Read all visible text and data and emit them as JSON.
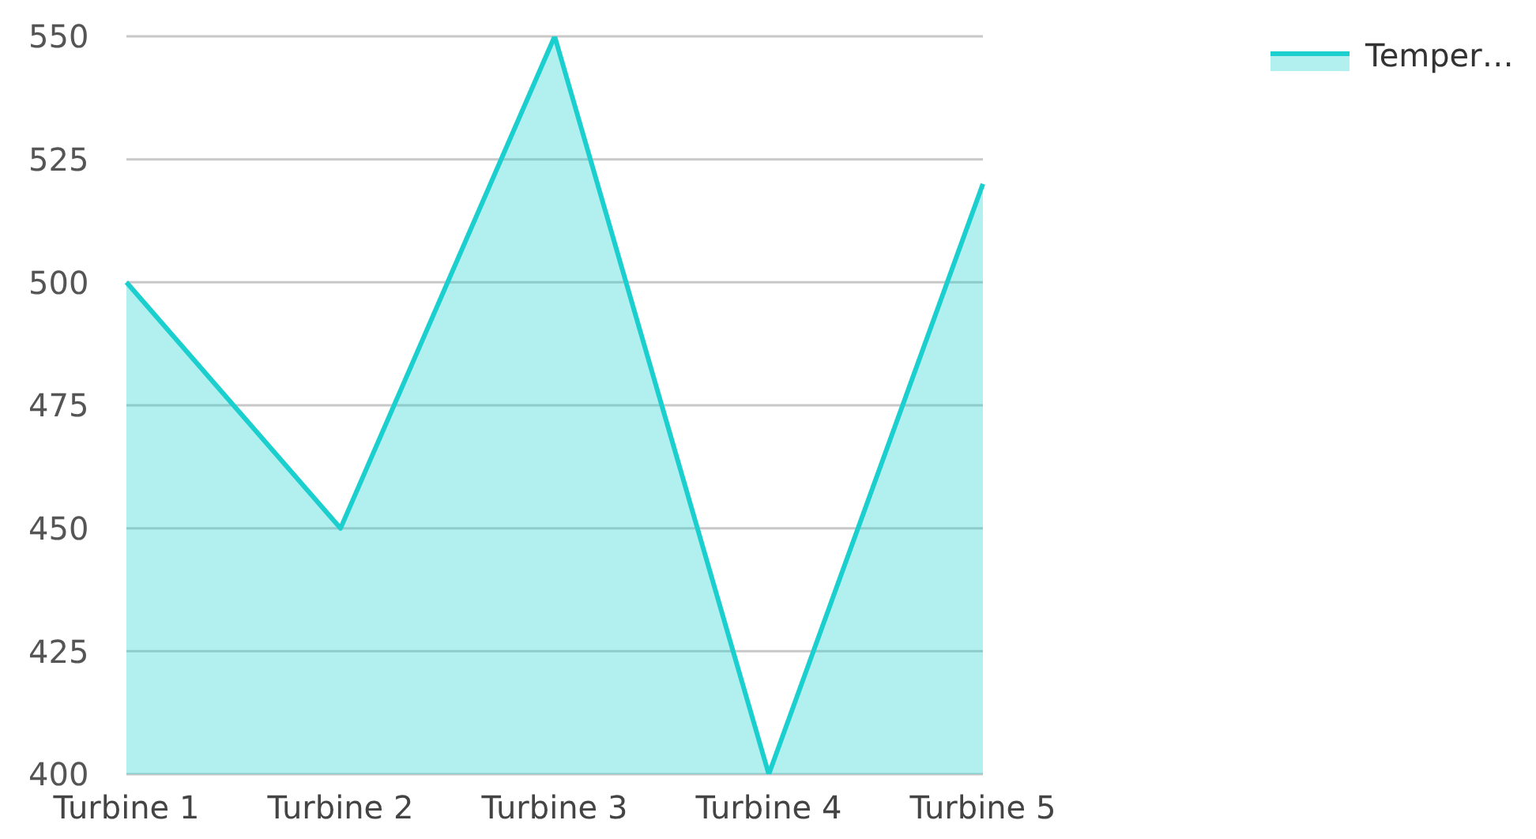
{
  "chart_data": {
    "type": "area",
    "categories": [
      "Turbine 1",
      "Turbine 2",
      "Turbine 3",
      "Turbine 4",
      "Turbine 5"
    ],
    "series": [
      {
        "name": "Temper…",
        "color": "#1ccfcf",
        "values": [
          500,
          450,
          550,
          400,
          520
        ]
      }
    ],
    "ylim": [
      400,
      550
    ],
    "yticks": [
      400,
      425,
      450,
      475,
      500,
      525,
      550
    ],
    "grid": "y",
    "legend": "top right"
  }
}
